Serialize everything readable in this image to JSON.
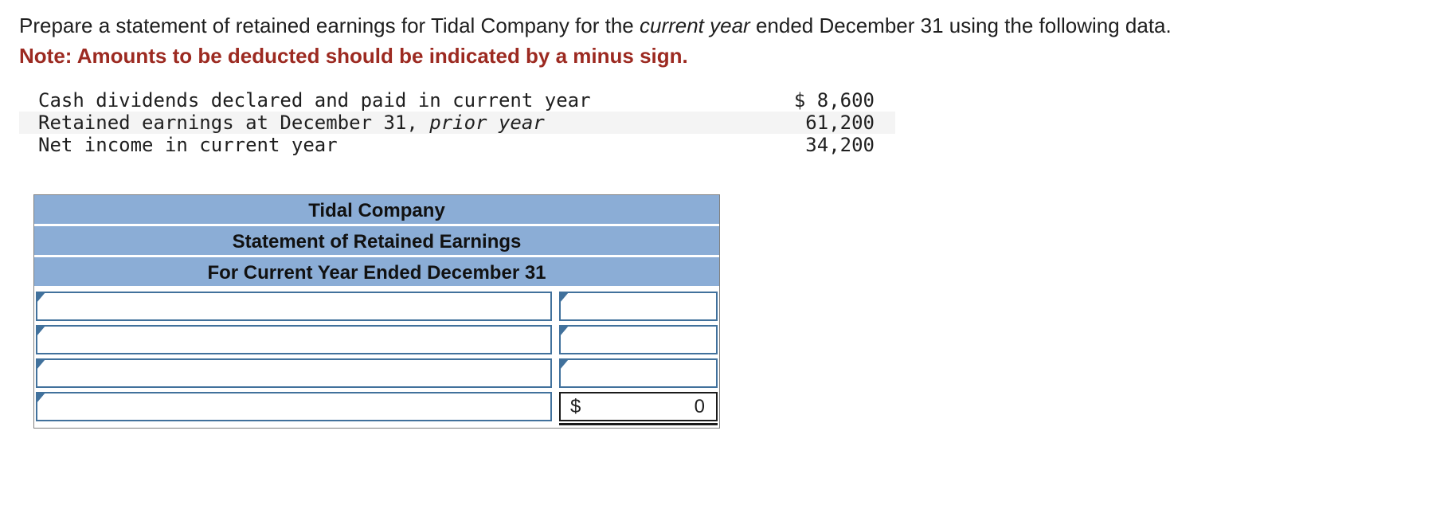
{
  "instructions": {
    "sentence_pre": "Prepare a statement of retained earnings for Tidal Company for the ",
    "sentence_italic": "current year",
    "sentence_post": " ended December 31 using the following data.",
    "note": "Note: Amounts to be deducted should be indicated by a minus sign."
  },
  "given_data": {
    "rows": [
      {
        "label_pre": "Cash dividends declared and paid in current year",
        "label_italic": "",
        "value": "$ 8,600"
      },
      {
        "label_pre": "Retained earnings at December 31, ",
        "label_italic": "prior year",
        "value": "61,200"
      },
      {
        "label_pre": "Net income in current year",
        "label_italic": "",
        "value": "34,200"
      }
    ]
  },
  "statement": {
    "title": "Tidal Company",
    "subtitle": "Statement of Retained Earnings",
    "period": "For Current Year Ended December 31",
    "rows": [
      {
        "description": "",
        "amount": ""
      },
      {
        "description": "",
        "amount": ""
      },
      {
        "description": "",
        "amount": ""
      }
    ],
    "total_row": {
      "description": "",
      "currency_symbol": "$",
      "amount": "0"
    }
  },
  "colors": {
    "header_blue": "#8badd6",
    "input_border_blue": "#41719c",
    "note_red": "#9c2a21",
    "stripe_gray": "#f4f4f4",
    "table_border_gray": "#808080",
    "total_border_dark": "#1a1a1a"
  }
}
